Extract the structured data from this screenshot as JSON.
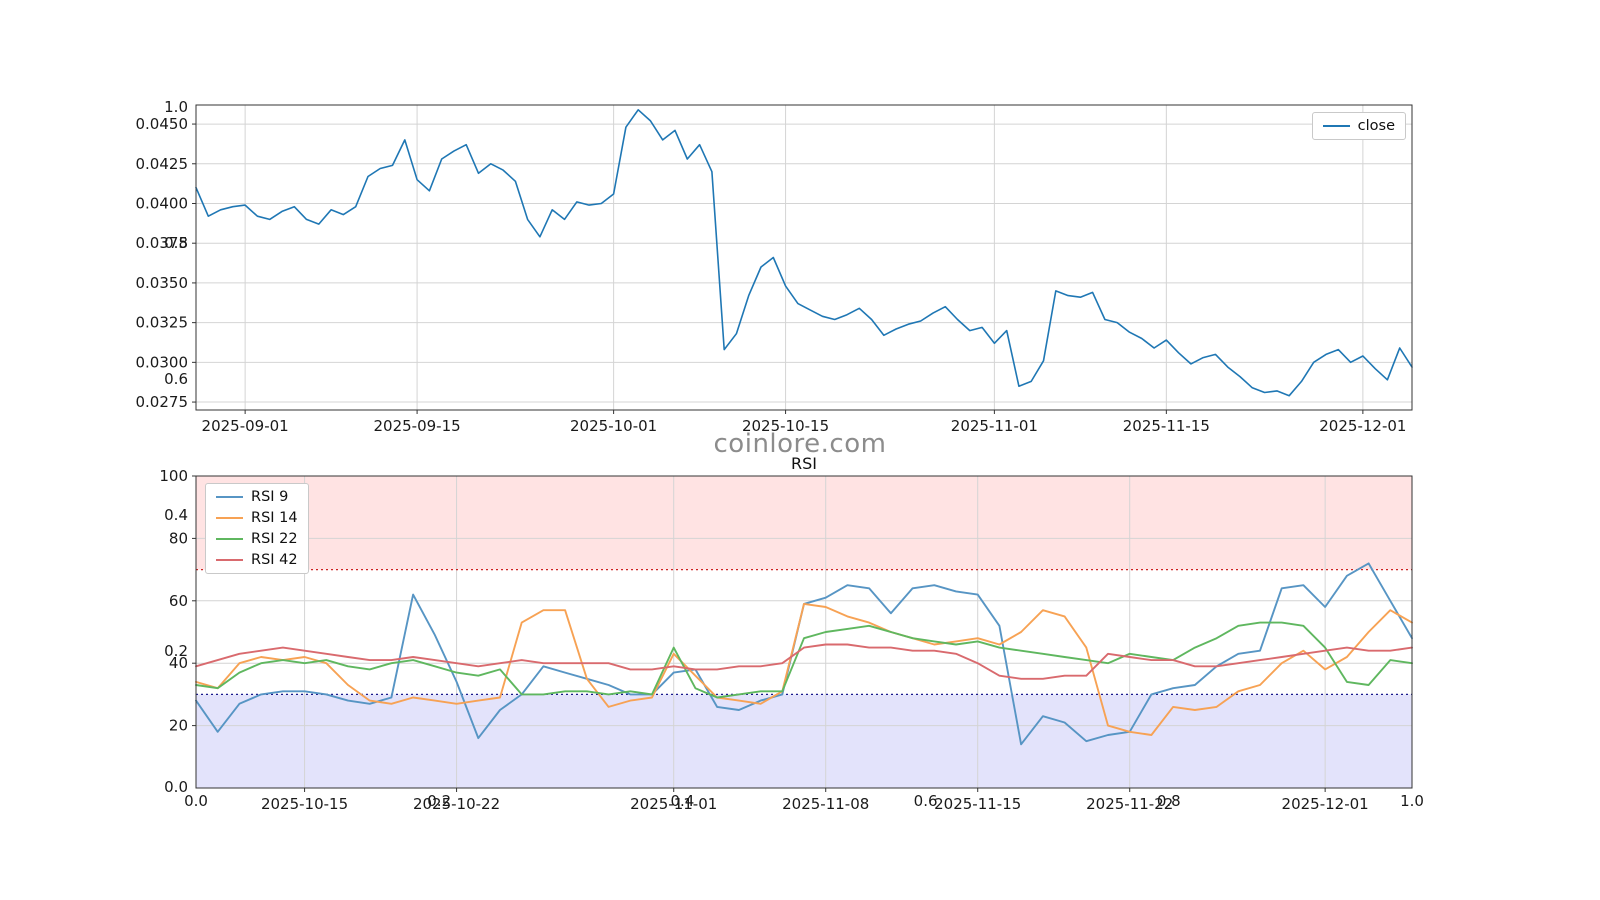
{
  "watermark": "coinlore.com",
  "phantom_axis": {
    "x_tick_labels": [
      "0.0",
      "0.2",
      "0.4",
      "0.6",
      "0.8",
      "1.0"
    ],
    "y_tick_labels": [
      "1.0",
      "0.8",
      "0.6",
      "0.4",
      "0.2",
      "0.0"
    ]
  },
  "chart_data": [
    {
      "type": "line",
      "title": "",
      "x_start": "2025-08-28",
      "x_ticks": [
        "2025-09-01",
        "2025-09-15",
        "2025-10-01",
        "2025-10-15",
        "2025-11-01",
        "2025-11-15",
        "2025-12-01"
      ],
      "y_ticks": [
        0.0275,
        0.03,
        0.0325,
        0.035,
        0.0375,
        0.04,
        0.0425,
        0.045
      ],
      "y_tick_decimals": 4,
      "ylim": [
        0.027,
        0.0462
      ],
      "grid": true,
      "legend_position": "top-right",
      "series": [
        {
          "name": "close",
          "color": "#1f77b4",
          "width": 1.6,
          "values": [
            0.041,
            0.0392,
            0.0396,
            0.0398,
            0.0399,
            0.0392,
            0.039,
            0.0395,
            0.0398,
            0.039,
            0.0387,
            0.0396,
            0.0393,
            0.0398,
            0.0417,
            0.0422,
            0.0424,
            0.044,
            0.0415,
            0.0408,
            0.0428,
            0.0433,
            0.0437,
            0.0419,
            0.0425,
            0.0421,
            0.0414,
            0.039,
            0.0379,
            0.0396,
            0.039,
            0.0401,
            0.0399,
            0.04,
            0.0406,
            0.0448,
            0.0459,
            0.0452,
            0.044,
            0.0446,
            0.0428,
            0.0437,
            0.042,
            0.0308,
            0.0318,
            0.0342,
            0.036,
            0.0366,
            0.0348,
            0.0337,
            0.0333,
            0.0329,
            0.0327,
            0.033,
            0.0334,
            0.0327,
            0.0317,
            0.0321,
            0.0324,
            0.0326,
            0.0331,
            0.0335,
            0.0327,
            0.032,
            0.0322,
            0.0312,
            0.032,
            0.0285,
            0.0288,
            0.0301,
            0.0345,
            0.0342,
            0.0341,
            0.0344,
            0.0327,
            0.0325,
            0.0319,
            0.0315,
            0.0309,
            0.0314,
            0.0306,
            0.0299,
            0.0303,
            0.0305,
            0.0297,
            0.0291,
            0.0284,
            0.0281,
            0.0282,
            0.0279,
            0.0288,
            0.03,
            0.0305,
            0.0308,
            0.03,
            0.0304,
            0.0296,
            0.0289,
            0.0309,
            0.0297
          ]
        }
      ]
    },
    {
      "type": "line",
      "title": "RSI",
      "x_start": "2025-10-10",
      "x_ticks": [
        "2025-10-15",
        "2025-10-22",
        "2025-11-01",
        "2025-11-08",
        "2025-11-15",
        "2025-11-22",
        "2025-12-01"
      ],
      "y_ticks": [
        100,
        80,
        60,
        40,
        20
      ],
      "y_tick_decimals": 0,
      "ylim": [
        0,
        100
      ],
      "grid": true,
      "legend_position": "top-left",
      "overbought_level": 70,
      "oversold_level": 30,
      "overbought_band_color": "rgba(255,60,60,0.14)",
      "oversold_band_color": "rgba(80,80,230,0.16)",
      "overbought_line_color": "#cc2222",
      "oversold_line_color": "#1a1a8c",
      "series": [
        {
          "name": "RSI 9",
          "color": "#5795c4",
          "width": 1.9,
          "values": [
            28,
            18,
            27,
            30,
            31,
            31,
            30,
            28,
            27,
            29,
            62,
            49,
            34,
            16,
            25,
            30,
            39,
            37,
            35,
            33,
            30,
            30,
            37,
            38,
            26,
            25,
            28,
            30,
            59,
            61,
            65,
            64,
            56,
            64,
            65,
            63,
            62,
            52,
            14,
            23,
            21,
            15,
            17,
            18,
            30,
            32,
            33,
            39,
            43,
            44,
            64,
            65,
            58,
            68,
            72,
            60,
            48
          ]
        },
        {
          "name": "RSI 14",
          "color": "#f7a254",
          "width": 1.9,
          "values": [
            34,
            32,
            40,
            42,
            41,
            42,
            40,
            33,
            28,
            27,
            29,
            28,
            27,
            28,
            29,
            53,
            57,
            57,
            35,
            26,
            28,
            29,
            43,
            36,
            29,
            28,
            27,
            31,
            59,
            58,
            55,
            53,
            50,
            48,
            46,
            47,
            48,
            46,
            50,
            57,
            55,
            45,
            20,
            18,
            17,
            26,
            25,
            26,
            31,
            33,
            40,
            44,
            38,
            42,
            50,
            57,
            53
          ]
        },
        {
          "name": "RSI 22",
          "color": "#5fb75f",
          "width": 1.9,
          "values": [
            33,
            32,
            37,
            40,
            41,
            40,
            41,
            39,
            38,
            40,
            41,
            39,
            37,
            36,
            38,
            30,
            30,
            31,
            31,
            30,
            31,
            30,
            45,
            32,
            29,
            30,
            31,
            31,
            48,
            50,
            51,
            52,
            50,
            48,
            47,
            46,
            47,
            45,
            44,
            43,
            42,
            41,
            40,
            43,
            42,
            41,
            45,
            48,
            52,
            53,
            53,
            52,
            45,
            34,
            33,
            41,
            40
          ]
        },
        {
          "name": "RSI 42",
          "color": "#d96a6e",
          "width": 1.9,
          "values": [
            39,
            41,
            43,
            44,
            45,
            44,
            43,
            42,
            41,
            41,
            42,
            41,
            40,
            39,
            40,
            41,
            40,
            40,
            40,
            40,
            38,
            38,
            39,
            38,
            38,
            39,
            39,
            40,
            45,
            46,
            46,
            45,
            45,
            44,
            44,
            43,
            40,
            36,
            35,
            35,
            36,
            36,
            43,
            42,
            41,
            41,
            39,
            39,
            40,
            41,
            42,
            43,
            44,
            45,
            44,
            44,
            45
          ]
        }
      ]
    }
  ]
}
